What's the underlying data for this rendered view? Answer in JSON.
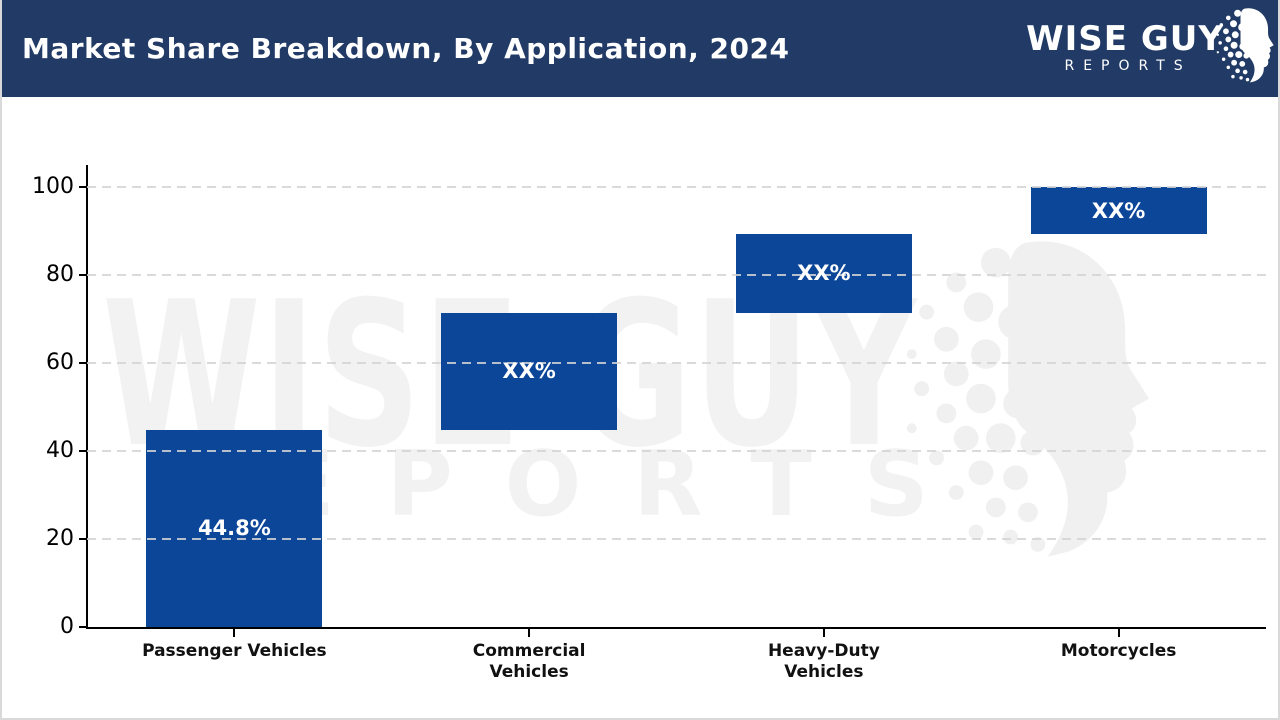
{
  "header": {
    "title": "Market Share Breakdown, By Application, 2024",
    "bg_color": "#213A66",
    "logo": {
      "wordmark": "WISE GUY",
      "subtitle": "REPORTS",
      "icon": "head-profile-dots-icon"
    }
  },
  "watermark": {
    "wordmark": "WISE GUY",
    "subtitle": "REPORTS"
  },
  "chart_data": {
    "type": "bar",
    "subtype": "waterfall",
    "title": "Market Share Breakdown, By Application, 2024",
    "categories": [
      "Passenger Vehicles",
      "Commercial Vehicles",
      "Heavy-Duty Vehicles",
      "Motorcycles"
    ],
    "category_label_lines": [
      [
        "Passenger Vehicles"
      ],
      [
        "Commercial",
        "Vehicles"
      ],
      [
        "Heavy-Duty",
        "Vehicles"
      ],
      [
        "Motorcycles"
      ]
    ],
    "segments": [
      {
        "category": "Passenger Vehicles",
        "start": 0,
        "end": 44.8,
        "label": "44.8%"
      },
      {
        "category": "Commercial Vehicles",
        "start": 44.8,
        "end": 71.4,
        "label": "XX%"
      },
      {
        "category": "Heavy-Duty Vehicles",
        "start": 71.4,
        "end": 89.3,
        "label": "XX%"
      },
      {
        "category": "Motorcycles",
        "start": 89.3,
        "end": 100,
        "label": "XX%"
      }
    ],
    "ylim": [
      0,
      100
    ],
    "yticks": [
      0,
      20,
      40,
      60,
      80,
      100
    ],
    "grid": "horizontal-dashed",
    "legend": "none",
    "bar_color": "#0C4699",
    "bar_label_color": "#FFFFFF",
    "axis_color": "#000000",
    "grid_color": "#DCDCDC"
  }
}
